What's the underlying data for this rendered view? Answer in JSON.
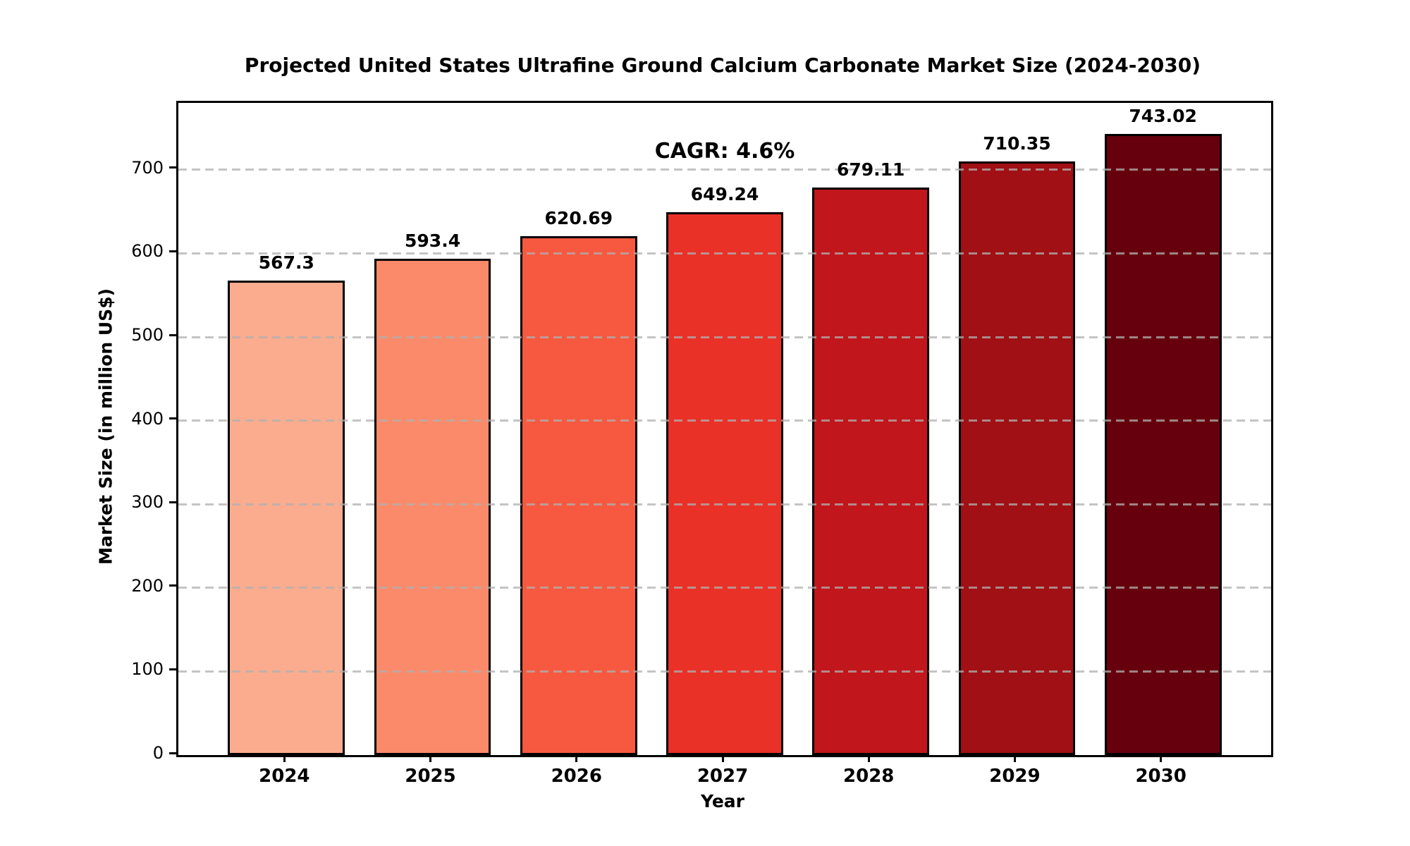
{
  "chart_data": {
    "type": "bar",
    "title": "Projected United States Ultrafine Ground Calcium Carbonate Market Size (2024-2030)",
    "xlabel": "Year",
    "ylabel": "Market Size (in million US$)",
    "categories": [
      "2024",
      "2025",
      "2026",
      "2027",
      "2028",
      "2029",
      "2030"
    ],
    "values": [
      567.3,
      593.4,
      620.69,
      649.24,
      679.11,
      710.35,
      743.02
    ],
    "bar_labels": [
      "567.3",
      "593.4",
      "620.69",
      "649.24",
      "679.11",
      "710.35",
      "743.02"
    ],
    "bar_colors": [
      "#fbac8e",
      "#fb8a6a",
      "#f6593f",
      "#e93128",
      "#c1161b",
      "#a01014",
      "#67000d"
    ],
    "bar_edge_color": "#000000",
    "annotation": {
      "text": "CAGR: 4.6%",
      "x_frac": 0.5,
      "y_value": 722
    },
    "ylim": [
      0,
      780
    ],
    "yticks": [
      0,
      100,
      200,
      300,
      400,
      500,
      600,
      700
    ],
    "grid": true,
    "grid_axis": "y",
    "grid_style": "dashed",
    "grid_color": "#b0b0b0",
    "grid_alpha": 0.75,
    "legend": null,
    "background_color": "#ffffff"
  }
}
